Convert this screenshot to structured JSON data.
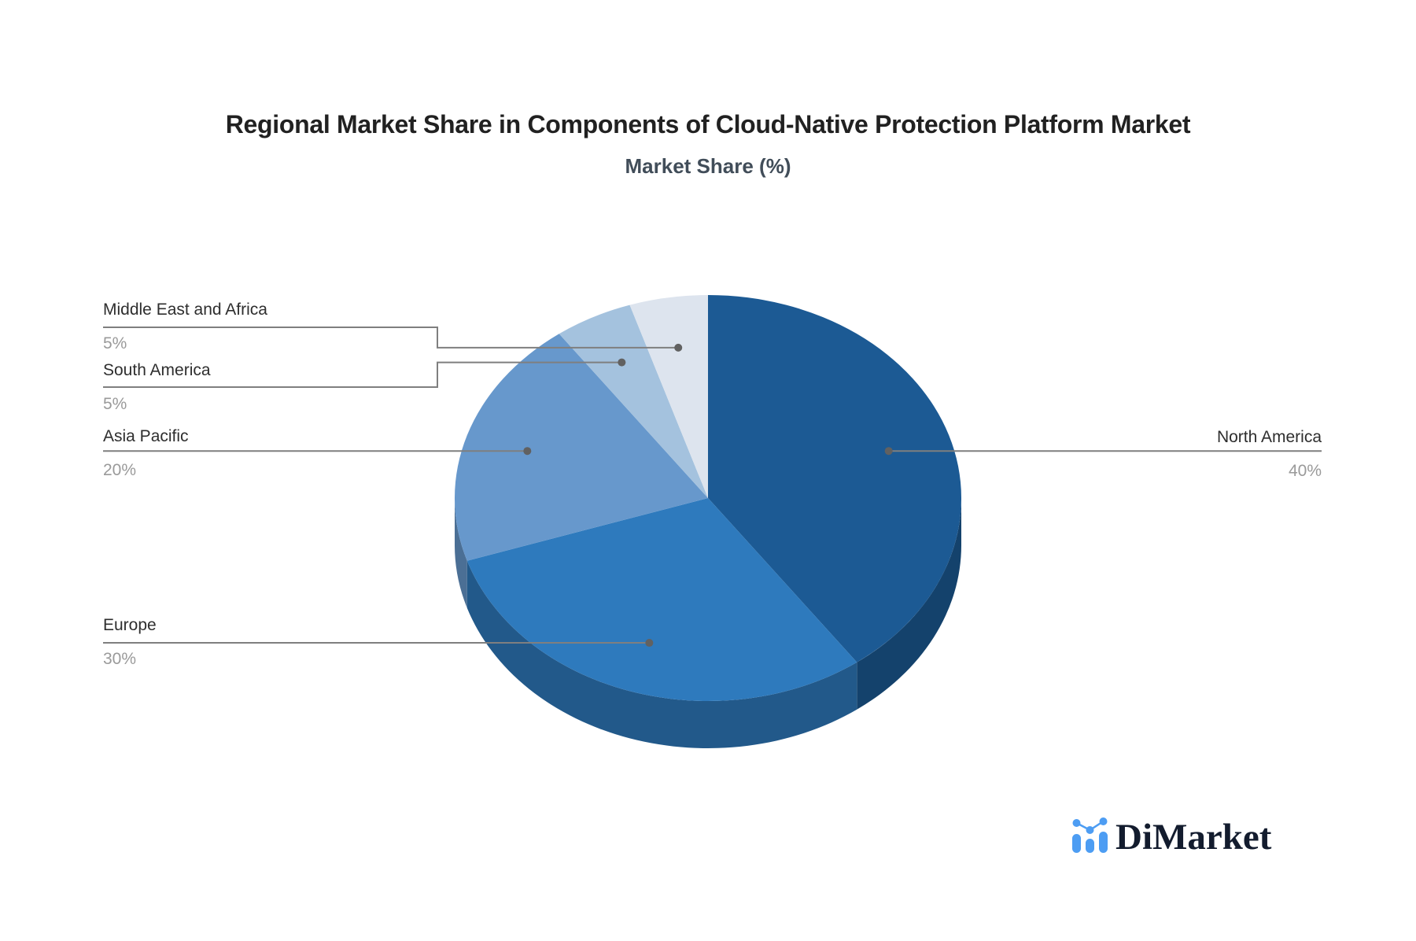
{
  "page": {
    "background": "#ffffff"
  },
  "chart_data": {
    "type": "pie",
    "style": "3d",
    "title": "Regional Market Share in Components of Cloud-Native Protection Platform Market",
    "subtitle": "Market Share (%)",
    "value_suffix": "%",
    "start_angle_deg": -90,
    "direction": "clockwise",
    "legend_position": "none",
    "series": [
      {
        "label": "North America",
        "value": 40,
        "color": "#1c5a94"
      },
      {
        "label": "Europe",
        "value": 30,
        "color": "#2e7abd"
      },
      {
        "label": "Asia Pacific",
        "value": 20,
        "color": "#6798cc"
      },
      {
        "label": "South America",
        "value": 5,
        "color": "#a4c2de"
      },
      {
        "label": "Middle East and Africa",
        "value": 5,
        "color": "#dde4ee"
      }
    ],
    "label_color": "#2e2e2e",
    "value_label_color": "#9a9a9a",
    "leader_line_color": "#7f7f7f",
    "leader_dot_color": "#616161"
  },
  "branding": {
    "logo_text": "DiMarket",
    "logo_text_color": "#131c2e",
    "logo_icon": "bar-chart-with-dots-icon",
    "logo_icon_color": "#4d9df3"
  }
}
